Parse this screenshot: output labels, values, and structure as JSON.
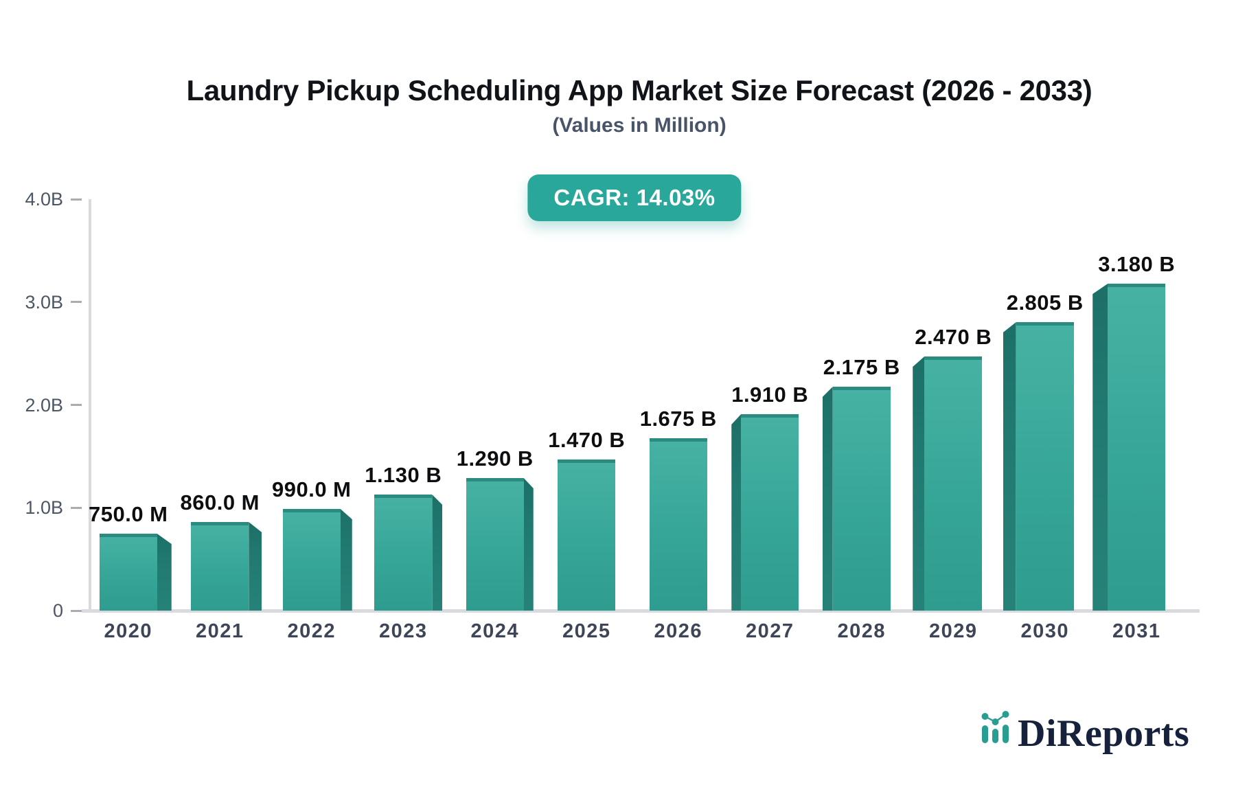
{
  "header": {
    "cagr_label": "CAGR: 14.03%"
  },
  "brand": {
    "name": "DiReports"
  },
  "chart_data": {
    "type": "bar",
    "title": "Laundry Pickup Scheduling App Market Size Forecast (2026 - 2033)",
    "subtitle": "(Values in Million)",
    "cagr": "14.03%",
    "categories": [
      "2020",
      "2021",
      "2022",
      "2023",
      "2024",
      "2025",
      "2026",
      "2027",
      "2028",
      "2029",
      "2030",
      "2031"
    ],
    "values_millions": [
      750,
      860,
      990,
      1130,
      1290,
      1470,
      1675,
      1910,
      2175,
      2470,
      2805,
      3180
    ],
    "bar_labels": [
      "750.0 M",
      "860.0 M",
      "990.0 M",
      "1.130 B",
      "1.290 B",
      "1.470 B",
      "1.675 B",
      "1.910 B",
      "2.175 B",
      "2.470 B",
      "2.805 B",
      "3.180 B"
    ],
    "ylim": [
      0,
      4000
    ],
    "y_ticks": [
      {
        "value": 0,
        "label": "0"
      },
      {
        "value": 1000,
        "label": "1.0B"
      },
      {
        "value": 2000,
        "label": "2.0B"
      },
      {
        "value": 3000,
        "label": "3.0B"
      },
      {
        "value": 4000,
        "label": "4.0B"
      }
    ],
    "grid": false,
    "legend": false,
    "colors": {
      "bar_front": "#36a698",
      "bar_side": "#217a71",
      "bar_top_edge": "#2a8b81",
      "accent_badge": "#2aa79b",
      "axis_line": "#d9dade",
      "tick_text": "#4d5665",
      "value_text": "#0d0e10",
      "category_text": "#3d4557",
      "logo_navy": "#16223c",
      "logo_teal": "#2a9d92"
    }
  }
}
